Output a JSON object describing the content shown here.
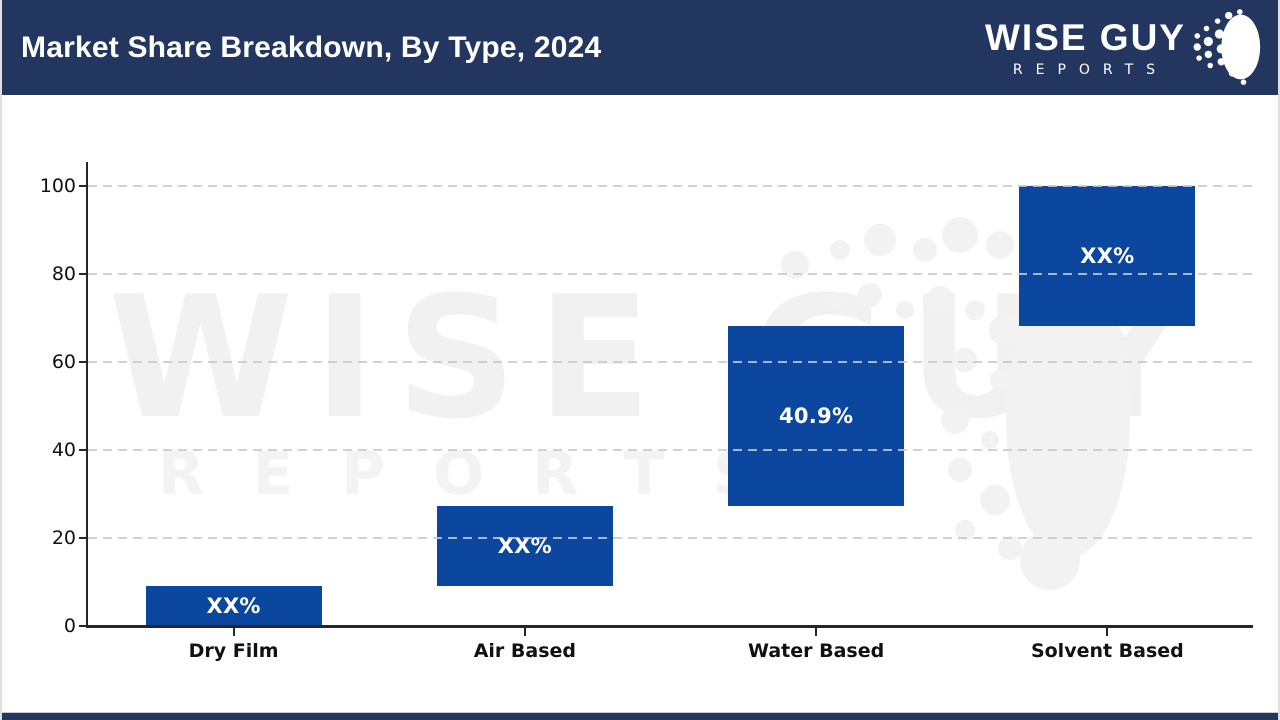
{
  "header": {
    "background_color": "#22365F",
    "title": "Market Share Breakdown, By Type, 2024",
    "logo": {
      "line1": "WISE GUY",
      "line2": "REPORTS"
    }
  },
  "watermark": {
    "line1": "WISE GUY",
    "line2": "REPORTS"
  },
  "chart_data": {
    "type": "bar",
    "subtype": "waterfall",
    "title": "Market Share Breakdown, By Type, 2024",
    "categories": [
      "Dry Film",
      "Air Based",
      "Water Based",
      "Solvent Based"
    ],
    "series": [
      {
        "name": "Market Share (%)",
        "segments": [
          {
            "category": "Dry Film",
            "start": 0,
            "end": 9.1,
            "value": 9.1,
            "label": "XX%"
          },
          {
            "category": "Air Based",
            "start": 9.1,
            "end": 27.3,
            "value": 18.2,
            "label": "XX%"
          },
          {
            "category": "Water Based",
            "start": 27.3,
            "end": 68.2,
            "value": 40.9,
            "label": "40.9%"
          },
          {
            "category": "Solvent Based",
            "start": 68.2,
            "end": 100,
            "value": 31.8,
            "label": "XX%"
          }
        ]
      }
    ],
    "bar_labels": [
      "XX%",
      "XX%",
      "40.9%",
      "XX%"
    ],
    "xlabel": "",
    "ylabel": "",
    "ylim": [
      0,
      100
    ],
    "yticks": [
      0,
      20,
      40,
      60,
      80,
      100
    ],
    "legend": "none",
    "grid": {
      "axis": "y",
      "style": "dashed",
      "above_bars": true,
      "color": "#D3D3D3"
    },
    "bar_color": "#0C479F",
    "bar_label_color": "#FFFFFF"
  }
}
